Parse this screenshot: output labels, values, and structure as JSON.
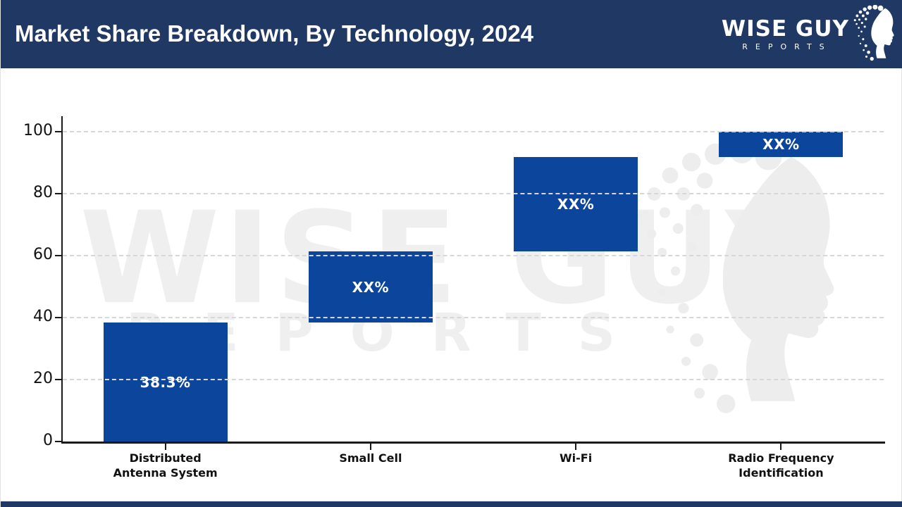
{
  "header": {
    "title": "Market Share Breakdown, By Technology, 2024",
    "brand": {
      "line1": "WISE GUY",
      "line2": "REPORTS"
    }
  },
  "watermark": {
    "line1": "WISE GUY",
    "line2": "REPORTS"
  },
  "colors": {
    "header_bg": "#1f3864",
    "footer_bg": "#1f3864",
    "bar_blue": "#0b459c",
    "watermark_gray": "#efefef",
    "gridline_gray": "#d7d7d7"
  },
  "chart_data": {
    "type": "bar",
    "variant": "waterfall",
    "title": "Market Share Breakdown, By Technology, 2024",
    "categories": [
      "Distributed Antenna System",
      "Small Cell",
      "Wi-Fi",
      "Radio Frequency Identification"
    ],
    "category_label_lines": [
      [
        "Distributed",
        "Antenna System"
      ],
      [
        "Small Cell"
      ],
      [
        "Wi-Fi"
      ],
      [
        "Radio Frequency",
        "Identification"
      ]
    ],
    "segments": [
      {
        "category": "Distributed Antenna System",
        "start": 0,
        "end": 38.3,
        "label": "38.3%"
      },
      {
        "category": "Small Cell",
        "start": 38.3,
        "end": 61.3,
        "label": "XX%"
      },
      {
        "category": "Wi-Fi",
        "start": 61.3,
        "end": 91.8,
        "label": "XX%"
      },
      {
        "category": "Radio Frequency Identification",
        "start": 91.8,
        "end": 100,
        "label": "XX%"
      }
    ],
    "bar_labels": [
      "38.3%",
      "XX%",
      "XX%",
      "XX%"
    ],
    "xlabel": "",
    "ylabel": "",
    "ylim": [
      0,
      100
    ],
    "yticks": [
      0,
      20,
      40,
      60,
      80,
      100
    ],
    "grid": "horizontal-dashed",
    "legend": null,
    "bar_color": "#0b459c"
  }
}
